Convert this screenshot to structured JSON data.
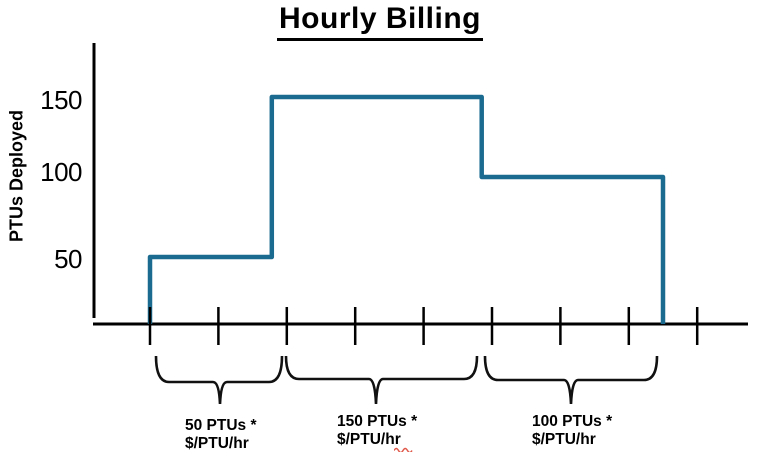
{
  "title": "Hourly Billing",
  "y_axis": {
    "label": "PTUs Deployed",
    "tick_labels": [
      "150",
      "100",
      "50"
    ]
  },
  "segments": [
    {
      "line1": "50 PTUs *",
      "line2": "$/PTU/hr",
      "spellcheck": false
    },
    {
      "line1": "150 PTUs *",
      "line2": "$/PTU/hr",
      "spellcheck": true
    },
    {
      "line1": "100 PTUs *",
      "line2": "$/PTU/hr",
      "spellcheck": false
    }
  ],
  "chart_data": {
    "type": "line",
    "line_style": "step",
    "title": "Hourly Billing",
    "ylabel": "PTUs Deployed",
    "xlabel": "",
    "yticks": [
      50,
      100,
      150
    ],
    "ylim": [
      0,
      175
    ],
    "x_tick_count": 9,
    "x_unit": "hours (ticks unlabeled)",
    "grid": false,
    "legend": false,
    "line_color": "#1b6b90",
    "steps": [
      {
        "x_start": 0,
        "x_end": 1.78,
        "value": 50,
        "annotation": "50 PTUs * $/PTU/hr"
      },
      {
        "x_start": 1.78,
        "x_end": 4.85,
        "value": 150,
        "annotation": "150 PTUs * $/PTU/hr"
      },
      {
        "x_start": 4.85,
        "x_end": 7.5,
        "value": 100,
        "annotation": "100 PTUs * $/PTU/hr"
      }
    ]
  },
  "colors": {
    "line": "#1b6b90",
    "axis": "#000000",
    "text": "#000000",
    "spellcheck_underline": "#e0584a",
    "background": "#ffffff"
  }
}
